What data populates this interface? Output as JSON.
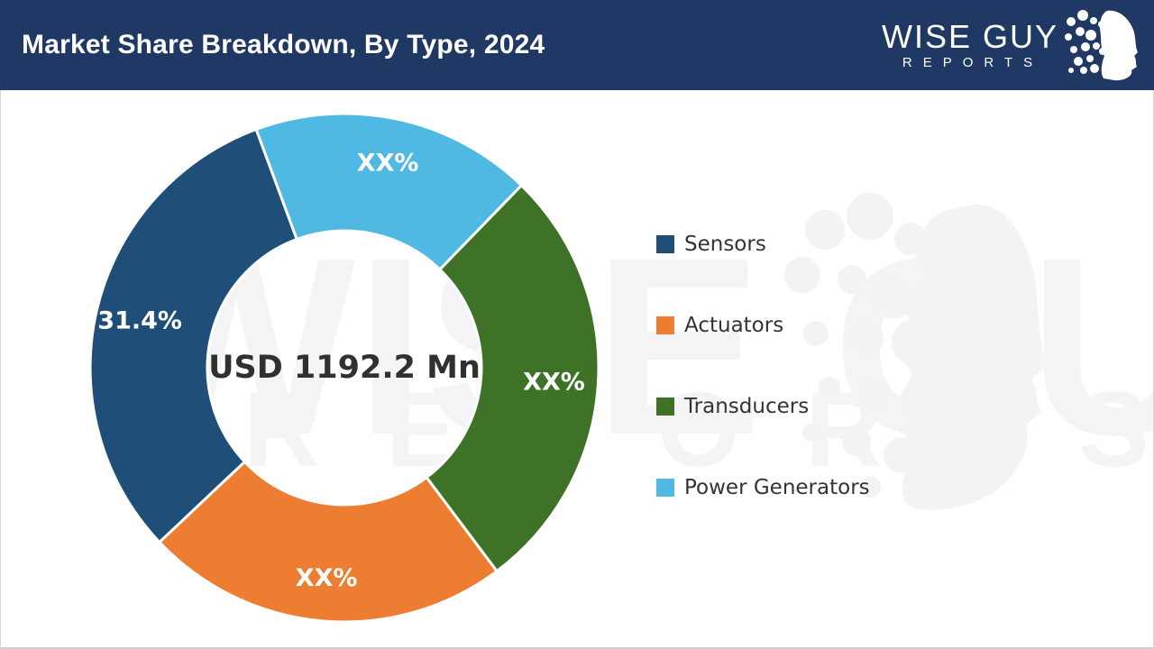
{
  "header": {
    "title": "Market Share Breakdown, By Type, 2024",
    "bg_color": "#1F3864",
    "logo": {
      "line1": "WISE GUY",
      "line2": "REPORTS"
    }
  },
  "chart_data": {
    "type": "pie",
    "subtype": "donut",
    "title": "Market Share Breakdown, By Type, 2024",
    "center_label": "USD 1192.2 Mn",
    "start_angle_deg": 110.3,
    "direction": "counterclockwise",
    "slices": [
      {
        "name": "Sensors",
        "value_pct": 31.4,
        "label": "31.4%",
        "color": "#1F4E79"
      },
      {
        "name": "Actuators",
        "value_pct": 23.2,
        "label": "XX%",
        "color": "#ED7D31"
      },
      {
        "name": "Transducers",
        "value_pct": 27.5,
        "label": "XX%",
        "color": "#3E7327"
      },
      {
        "name": "Power Generators",
        "value_pct": 17.9,
        "label": "XX%",
        "color": "#4FB8E3"
      }
    ],
    "legend_position": "right"
  },
  "watermark": {
    "line1": "WISE GUY",
    "line2": "R E P O R T S"
  }
}
